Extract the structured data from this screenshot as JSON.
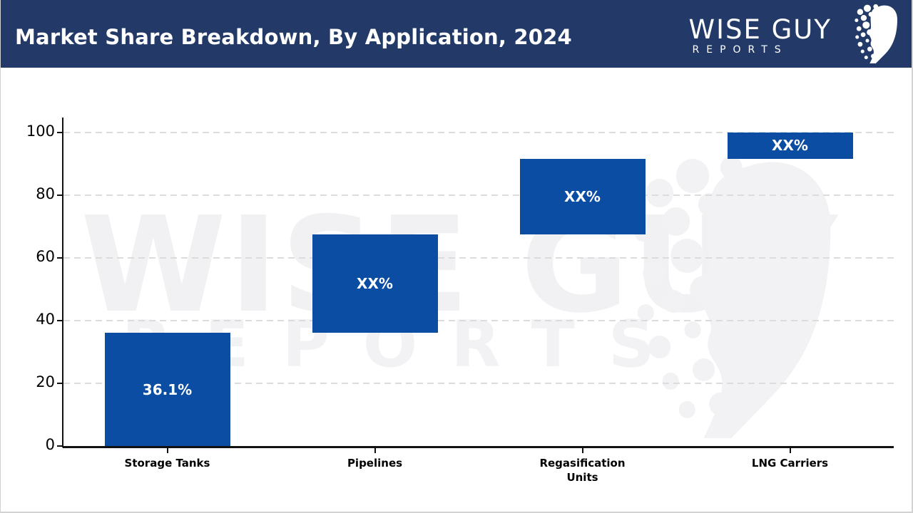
{
  "header": {
    "title": "Market Share Breakdown, By Application, 2024",
    "logo": {
      "line1": "WISE GUY",
      "line2": "REPORTS"
    }
  },
  "watermark": {
    "line1": "WISE GUY",
    "line2": "REPORTS"
  },
  "chart_data": {
    "type": "bar",
    "subtype": "floating-waterfall",
    "title": "Market Share Breakdown, By Application, 2024",
    "categories": [
      "Storage Tanks",
      "Pipelines",
      "Regasification Units",
      "LNG Carriers"
    ],
    "segments": [
      {
        "label": "36.1%",
        "start": 0,
        "end": 36.1
      },
      {
        "label": "XX%",
        "start": 36.1,
        "end": 67.5
      },
      {
        "label": "XX%",
        "start": 67.5,
        "end": 91.6
      },
      {
        "label": "XX%",
        "start": 91.6,
        "end": 100
      }
    ],
    "yticks": [
      0,
      20,
      40,
      60,
      80,
      100
    ],
    "ylim": [
      0,
      105
    ],
    "xlabel": "",
    "ylabel": "",
    "grid": "horizontal-dashed",
    "legend": "none",
    "bar_color": "#0B4DA2",
    "label_color": "#ffffff",
    "axis_color": "#111111",
    "grid_color": "#dcdcdc",
    "header_bg": "#233A68",
    "watermark_color": "#f1f1f3"
  }
}
